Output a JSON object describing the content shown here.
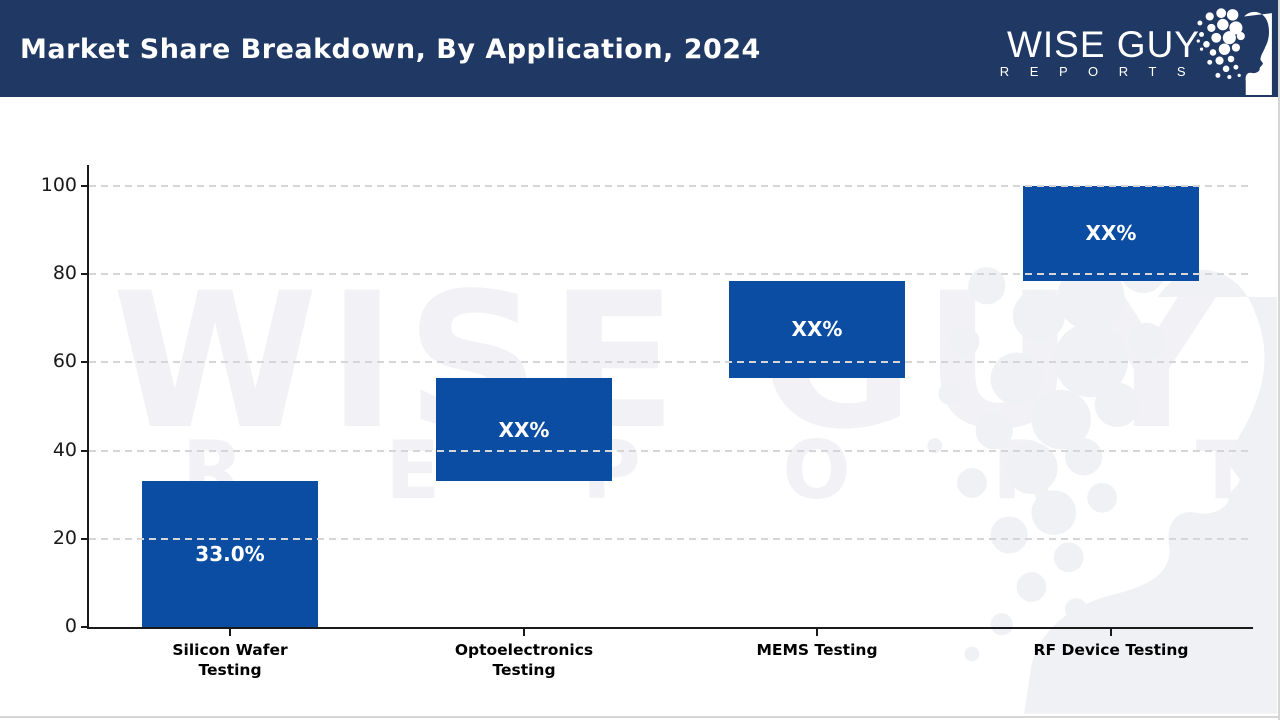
{
  "header": {
    "title": "Market Share Breakdown, By Application, 2024",
    "logo": {
      "line1": "WISE GUY",
      "line2": "REPORTS"
    }
  },
  "watermark": {
    "line1": "WISE GUY",
    "line2": "REPORTS"
  },
  "chart_data": {
    "type": "bar",
    "subtype": "waterfall-floating-bars",
    "title": "Market Share Breakdown, By Application, 2024",
    "categories": [
      "Silicon Wafer Testing",
      "Optoelectronics Testing",
      "MEMS Testing",
      "RF Device Testing"
    ],
    "segments": [
      {
        "category": "Silicon Wafer Testing",
        "start": 0,
        "end": 33,
        "label": "33.0%"
      },
      {
        "category": "Optoelectronics Testing",
        "start": 33,
        "end": 56.5,
        "label": "XX%"
      },
      {
        "category": "MEMS Testing",
        "start": 56.5,
        "end": 78.5,
        "label": "XX%"
      },
      {
        "category": "RF Device Testing",
        "start": 78.5,
        "end": 100,
        "label": "XX%"
      }
    ],
    "yticks": [
      0,
      20,
      40,
      60,
      80,
      100
    ],
    "ylim": [
      0,
      105
    ],
    "xlabel": "",
    "ylabel": "",
    "grid": "horizontal-dashed",
    "legend": "none",
    "bar_color": "#0b4da2",
    "bar_label_color": "#ffffff"
  },
  "colors": {
    "header_bg": "#1f3864",
    "bar": "#0b4da2",
    "grid": "#d6d6d6",
    "axis": "#1a1a1a",
    "watermark": "#f2f2f6"
  }
}
